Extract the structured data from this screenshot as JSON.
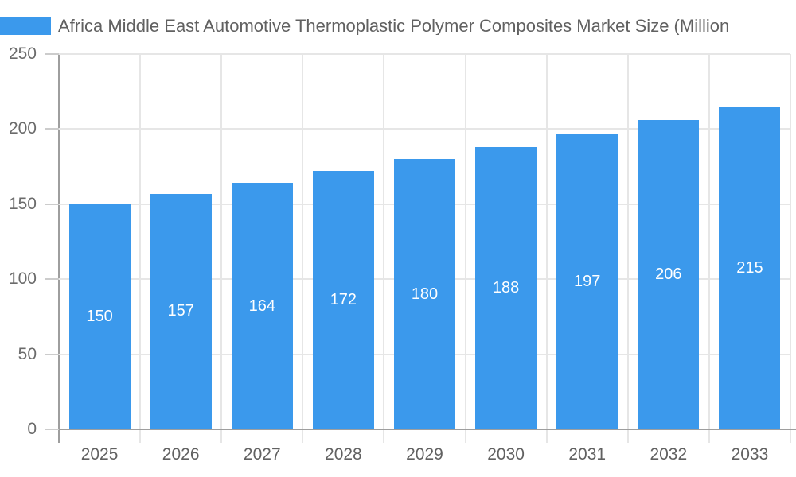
{
  "chart_data": {
    "type": "bar",
    "title": "Africa Middle East Automotive Thermoplastic Polymer Composites Market Size (Million",
    "title_clipped_at_right_edge": true,
    "legend_position": "top",
    "categories": [
      "2025",
      "2026",
      "2027",
      "2028",
      "2029",
      "2030",
      "2031",
      "2032",
      "2033"
    ],
    "values": [
      150,
      157,
      164,
      172,
      180,
      188,
      197,
      206,
      215
    ],
    "xlabel": "",
    "ylabel": "",
    "ylim": [
      0,
      250
    ],
    "yticks": [
      0,
      50,
      100,
      150,
      200,
      250
    ],
    "grid": true,
    "value_labels_inside_bars": true,
    "colors": {
      "bar": "#3b99ec",
      "value_label": "#ffffff",
      "axis_line": "#9e9e9e",
      "gridline": "#e6e6e6",
      "tick_dash": "#cccccc",
      "axis_label": "#6b6b6b",
      "title_text": "#616161"
    }
  }
}
